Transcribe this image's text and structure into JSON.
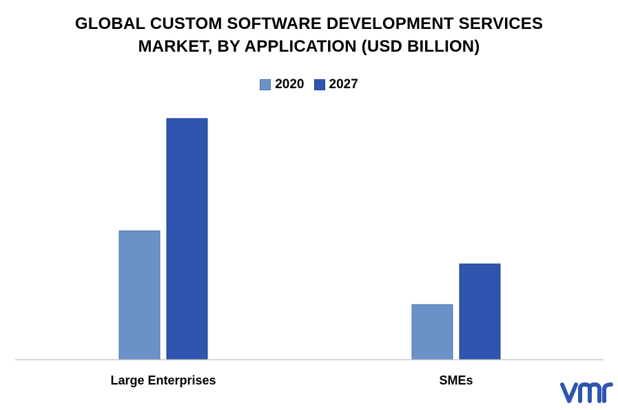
{
  "chart_data": {
    "type": "bar",
    "title_lines": [
      "GLOBAL CUSTOM SOFTWARE DEVELOPMENT SERVICES",
      "MARKET, BY APPLICATION (USD BILLION)"
    ],
    "categories": [
      "Large Enterprises",
      "SMEs"
    ],
    "series": [
      {
        "name": "2020",
        "values": [
          187,
          80
        ],
        "color": "#6a92c8"
      },
      {
        "name": "2027",
        "values": [
          350,
          139
        ],
        "color": "#2f55ae"
      }
    ],
    "ylim": [
      0,
      400
    ],
    "grid": false,
    "legend_position": "top-center"
  },
  "logo": {
    "name": "vmr-logo",
    "text": "vmr",
    "color": "#2f55ae"
  }
}
